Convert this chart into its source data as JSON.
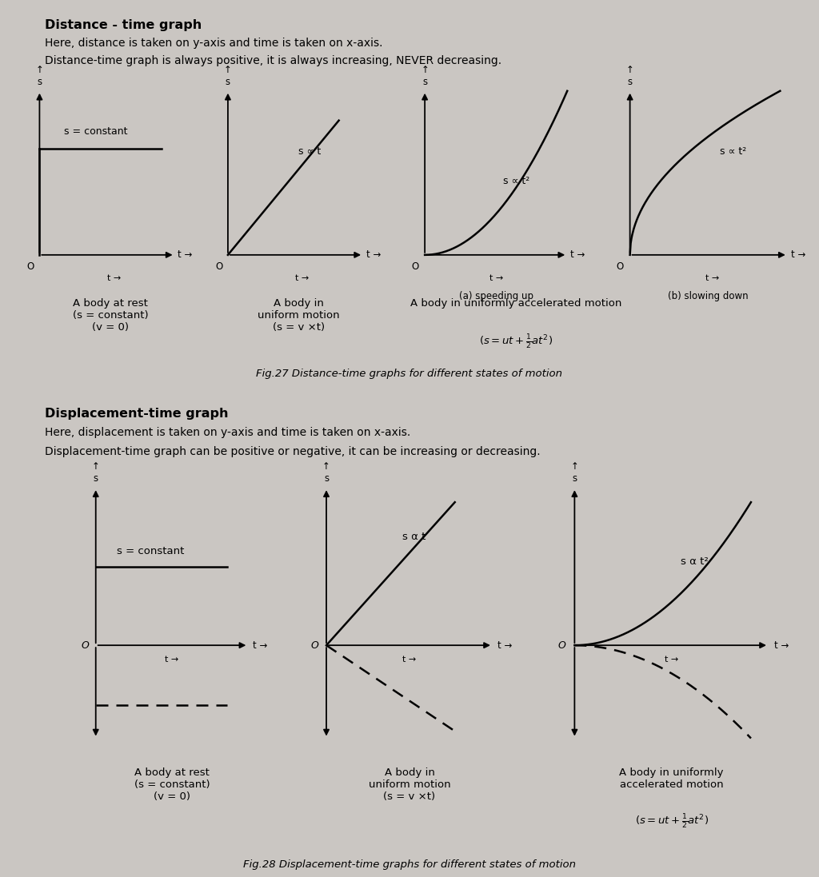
{
  "bg_color": "#cac6c2",
  "title1": "Distance - time graph",
  "desc1a": "Here, distance is taken on y-axis and time is taken on x-axis.",
  "desc1b": "Distance-time graph is always positive, it is always increasing, NEVER decreasing.",
  "fig1_caption": "Fig.27 Distance-time graphs for different states of motion",
  "title2": "Displacement-time graph",
  "desc2a": "Here, displacement is taken on y-axis and time is taken on x-axis.",
  "desc2b": "Displacement-time graph can be positive or negative, it can be increasing or decreasing.",
  "fig2_caption": "Fig.28 Displacement-time graphs for different states of motion",
  "label_speeding_up": "(a) speeding up",
  "label_slowing_down": "(b) slowing down"
}
